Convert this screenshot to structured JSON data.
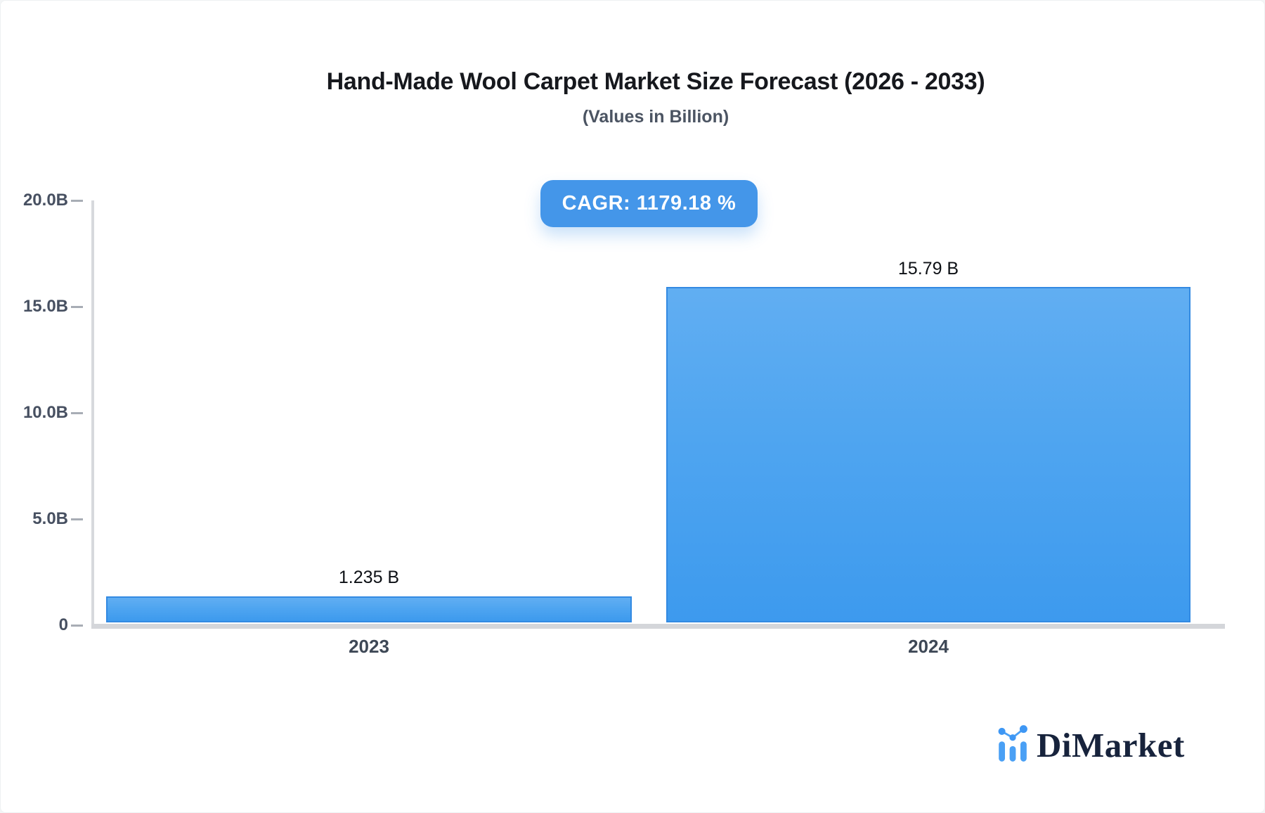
{
  "header": {
    "title": "Hand-Made Wool Carpet Market Size Forecast (2026 - 2033)",
    "subtitle": "(Values in Billion)",
    "cagr_badge": "CAGR: 1179.18 %"
  },
  "chart_data": {
    "type": "bar",
    "title": "Hand-Made Wool Carpet Market Size Forecast (2026 - 2033)",
    "subtitle": "(Values in Billion)",
    "unit": "Billion",
    "categories": [
      "2023",
      "2024"
    ],
    "values": [
      1.235,
      15.79
    ],
    "value_labels": [
      "1.235 B",
      "15.79 B"
    ],
    "cagr_percent": 1179.18,
    "ylim": [
      0,
      20
    ],
    "yticks": [
      "20.0B",
      "15.0B",
      "10.0B",
      "5.0B",
      "0"
    ],
    "grid": "off",
    "legend": "none",
    "colors": {
      "bar_fill_top": "#61aef2",
      "bar_fill_bottom": "#3d9aee",
      "bar_border": "#338ae2",
      "badge_bg": "#4496e9",
      "badge_text": "#ffffff",
      "axis_line": "#d4d6da",
      "tick_text": "#475061"
    }
  },
  "branding": {
    "name": "DiMarket",
    "icon": "bar-line-chart-icon"
  }
}
